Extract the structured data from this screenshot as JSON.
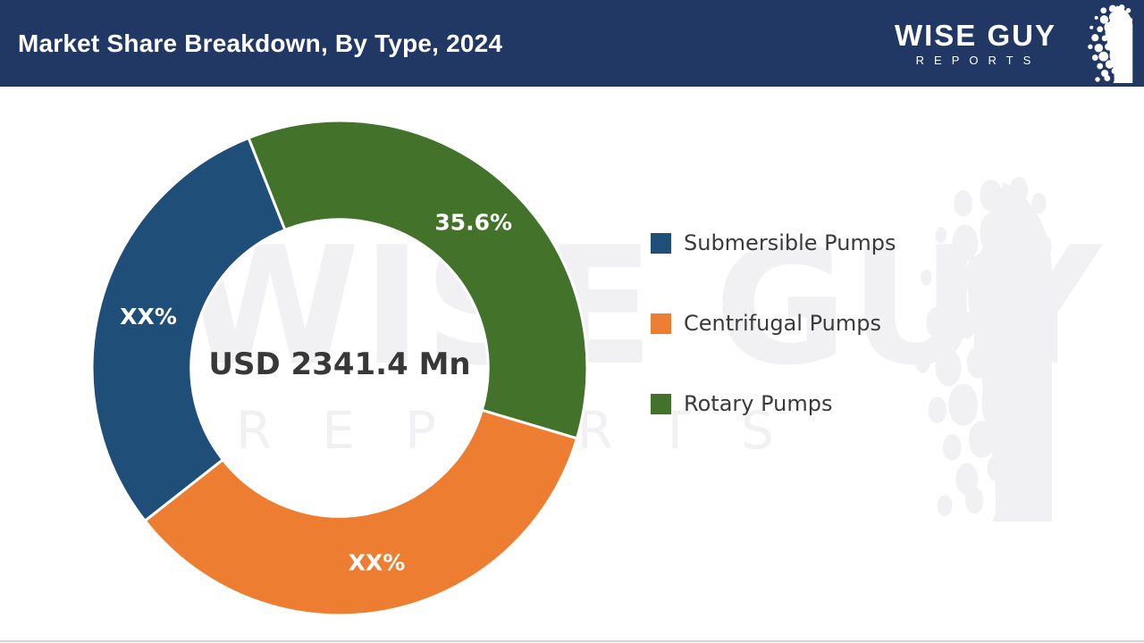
{
  "header": {
    "title": "Market Share Breakdown, By Type, 2024",
    "logo": {
      "line1": "WISE GUY",
      "line2": "REPORTS"
    }
  },
  "watermark": {
    "line1": "WISE GUY",
    "line2": "REPORTS"
  },
  "colors": {
    "header_bg": "#213764",
    "submersible_blue": "#1F4E79",
    "centrifugal_orange": "#ED7D31",
    "rotary_green": "#43732A",
    "text_dark": "#3A3A3A",
    "slice_label": "#FFFFFF",
    "watermark": "#F1F1F4",
    "bottom_line": "#D5D5D5"
  },
  "chart_data": {
    "type": "pie",
    "subtype": "donut",
    "title": "Market Share Breakdown, By Type, 2024",
    "center_label": "USD 2341.4 Mn",
    "start_angle_deg": -21.6,
    "clockwise": true,
    "inner_radius_ratio": 0.6,
    "segments": [
      {
        "name": "Rotary Pumps",
        "display_label": "35.6%",
        "pct": 35.6,
        "color": "#43732A"
      },
      {
        "name": "Centrifugal Pumps",
        "display_label": "XX%",
        "pct": 34.8,
        "color": "#ED7D31"
      },
      {
        "name": "Submersible Pumps",
        "display_label": "XX%",
        "pct": 29.6,
        "color": "#1F4E79"
      }
    ],
    "legend": {
      "position": "right",
      "items": [
        {
          "label": "Submersible Pumps",
          "color": "#1F4E79"
        },
        {
          "label": "Centrifugal Pumps",
          "color": "#ED7D31"
        },
        {
          "label": "Rotary Pumps",
          "color": "#43732A"
        }
      ]
    }
  }
}
